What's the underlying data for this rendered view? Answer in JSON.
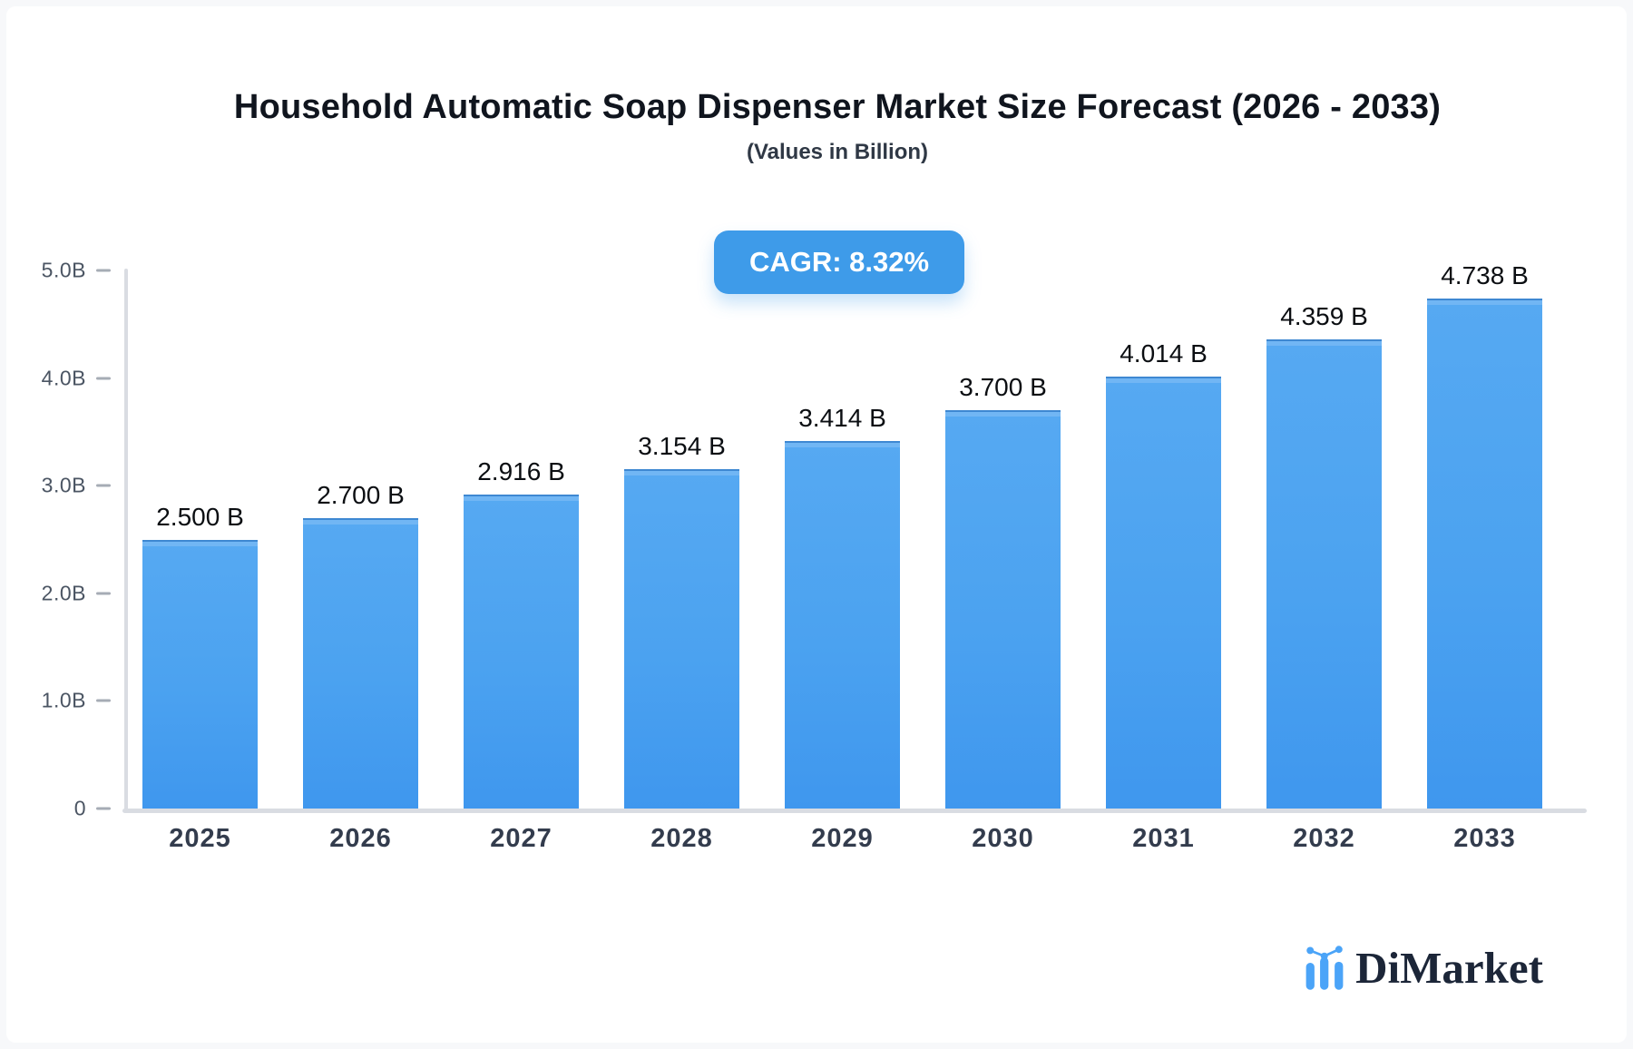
{
  "header": {
    "title": "Household Automatic Soap Dispenser Market Size Forecast (2026 - 2033)",
    "subtitle": "(Values in Billion)",
    "cagr_badge": "CAGR: 8.32%"
  },
  "chart_data": {
    "type": "bar",
    "title": "Household Automatic Soap Dispenser Market Size Forecast (2026 - 2033)",
    "subtitle": "(Values in Billion)",
    "unit": "Billion",
    "cagr_percent": 8.32,
    "categories": [
      "2025",
      "2026",
      "2027",
      "2028",
      "2029",
      "2030",
      "2031",
      "2032",
      "2033"
    ],
    "values": [
      2.5,
      2.7,
      2.916,
      3.154,
      3.414,
      3.7,
      4.014,
      4.359,
      4.738
    ],
    "bar_labels": [
      "2.500 B",
      "2.700 B",
      "2.916 B",
      "3.154 B",
      "3.414 B",
      "3.700 B",
      "4.014 B",
      "4.359 B",
      "4.738 B"
    ],
    "y_ticks": [
      "0",
      "1.0B",
      "2.0B",
      "3.0B",
      "4.0B",
      "5.0B"
    ],
    "ylim": [
      0,
      5
    ],
    "xlabel": "",
    "ylabel": "",
    "legend": "none",
    "grid": "off",
    "style_note": "3D extruded bars; side face on right for bars left of center, on left for bars right of center, flat center bar"
  },
  "footer": {
    "logo_text": "DiMarket"
  },
  "colors": {
    "bg": "#F7F8FA",
    "card": "#FFFFFF",
    "title": "#10151E",
    "badge_bg": "#3E9BE9",
    "bar_face_top": "#56A9F2",
    "bar_face_bottom": "#3F97EE",
    "bar_side": "#2F72B8",
    "bar_top_edge": "#3E88D2",
    "axis_line": "#D9DCE2",
    "tick": "#A6ACB5",
    "y_label": "#4B5563",
    "x_label": "#333C4D",
    "data_label": "#0B0E12",
    "logo_navy": "#1C2638",
    "logo_blue": "#4BA4F8"
  }
}
